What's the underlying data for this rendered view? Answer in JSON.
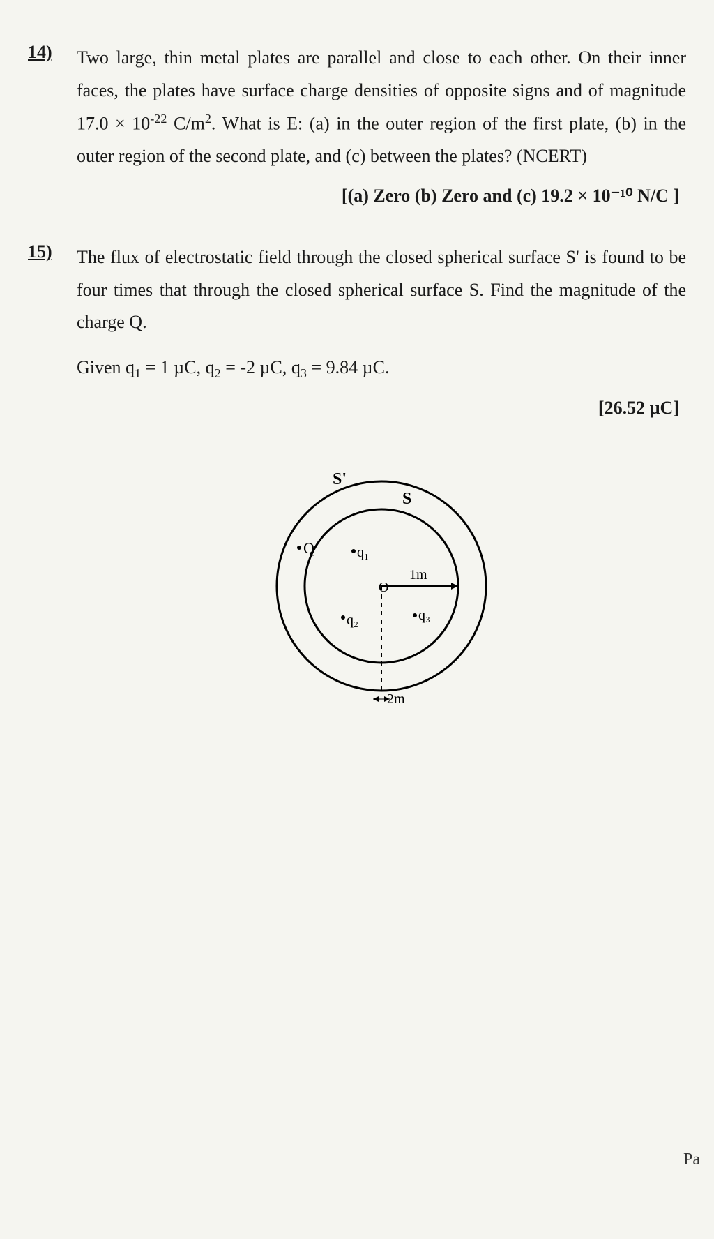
{
  "q14": {
    "number": "14)",
    "text_parts": {
      "p1": "Two large, thin metal plates are parallel and close to each other. On their inner faces, the plates have surface charge densities of opposite signs and of magnitude 17.0 × 10",
      "exp1": "-22",
      "p2": " C/m",
      "exp2": "2",
      "p3": ". What is E: (a) in the outer region of the first plate, (b) in the outer region of the second plate, and (c) between the plates? (NCERT)"
    },
    "answer": "[(a) Zero   (b) Zero   and   (c) 19.2 × 10⁻¹⁰ N/C ]"
  },
  "q15": {
    "number": "15)",
    "text": "The flux of electrostatic field through the closed spherical surface S' is found to be four times that through the closed spherical surface S. Find the magnitude of the charge Q.",
    "given_parts": {
      "g1": "Given q",
      "sub1": "1",
      "g2": " = 1 µC, q",
      "sub2": "2",
      "g3": " = -2 µC, q",
      "sub3": "3",
      "g4": " = 9.84 µC."
    },
    "answer": "[26.52 µC]"
  },
  "diagram": {
    "outer_label": "S'",
    "inner_label": "S",
    "center": "O",
    "q1": "q₁",
    "q2": "q₂",
    "q3": "q₃",
    "Q": "Q",
    "r1": "1m",
    "r2": "2m",
    "outer_radius": 150,
    "inner_radius": 110,
    "stroke": "#000000",
    "fill": "#ffffff"
  },
  "page_marker": "Pa"
}
